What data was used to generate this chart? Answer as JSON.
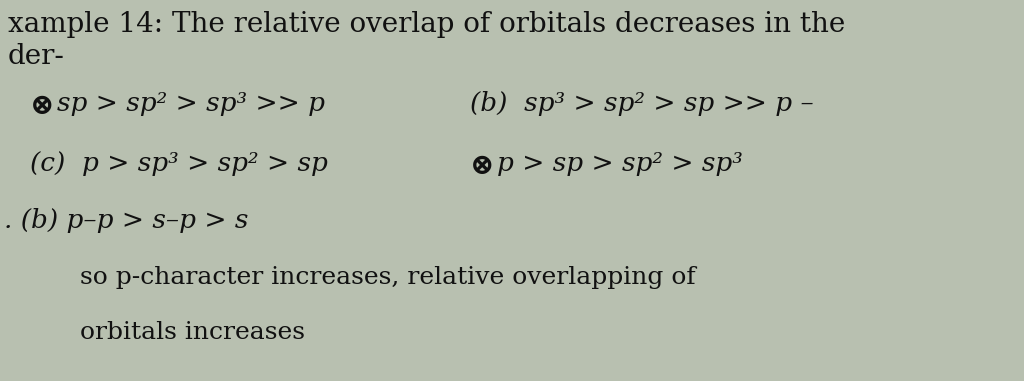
{
  "background_color": "#b8c0b0",
  "title_line1": "xample 14: The relative overlap of orbitals decreases in the",
  "title_line2": "der-",
  "option_a_sym": "⊗",
  "option_a_text": " sp > sp² > sp³ >> p",
  "option_b": "(b)  sp³ > sp² > sp >> p –",
  "option_c": "(c)  p > sp³ > sp² > sp",
  "option_d_sym": "⊗",
  "option_d_text": " p > sp > sp² > sp³",
  "answer_line": ". (b) p–p > s–p > s",
  "explanation": "so p-character increases, relative overlapping of",
  "explanation2": "orbitals increases",
  "font_size_title": 20,
  "font_size_options": 19,
  "font_size_answer": 19,
  "font_size_explanation": 18,
  "text_color": "#111111",
  "figwidth": 10.24,
  "figheight": 3.81,
  "dpi": 100
}
